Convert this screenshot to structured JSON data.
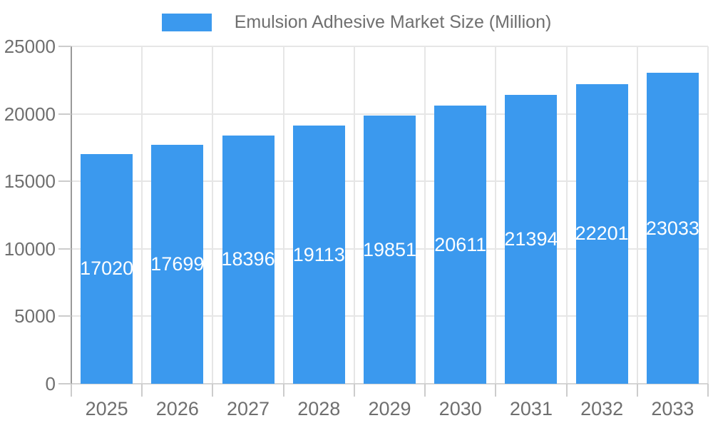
{
  "legend": {
    "label": "Emulsion Adhesive Market Size (Million)"
  },
  "colors": {
    "bar": "#3B99EE",
    "grid": "#e6e6e6",
    "zero_line": "#d5d5d5",
    "y_axis_line": "#999999",
    "tick": "#cccccc",
    "axis_text": "#6f6f6f",
    "bar_value_text": "#ffffff",
    "background": "#ffffff"
  },
  "chart_data": {
    "type": "bar",
    "title": "Emulsion Adhesive Market Size (Million)",
    "series_name": "Emulsion Adhesive Market Size (Million)",
    "categories": [
      "2025",
      "2026",
      "2027",
      "2028",
      "2029",
      "2030",
      "2031",
      "2032",
      "2033"
    ],
    "values": [
      17020,
      17699,
      18396,
      19113,
      19851,
      20611,
      21394,
      22201,
      23033
    ],
    "xlabel": "",
    "ylabel": "",
    "ylim": [
      0,
      25000
    ],
    "yticks": [
      0,
      5000,
      10000,
      15000,
      20000,
      25000
    ],
    "grid": true,
    "legend_position": "top-center",
    "value_label_position": "inside-middle"
  }
}
